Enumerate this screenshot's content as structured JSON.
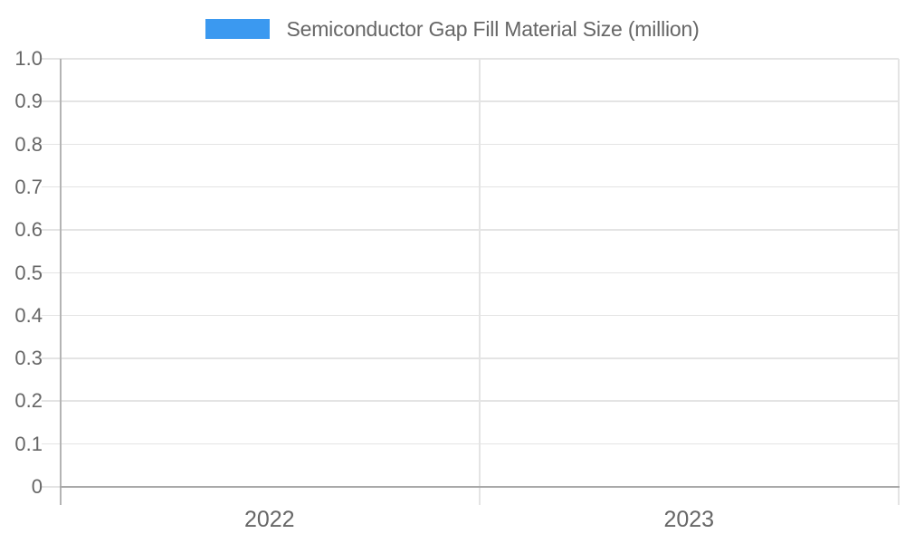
{
  "legend": {
    "label": "Semiconductor Gap Fill Material Size (million)"
  },
  "chart_data": {
    "type": "bar",
    "title": "Semiconductor Gap Fill Material Size (million)",
    "categories": [
      "2022",
      "2023"
    ],
    "series": [
      {
        "name": "Semiconductor Gap Fill Material Size (million)",
        "color": "#3B99F0",
        "values": [
          null,
          null
        ]
      }
    ],
    "xlabel": "",
    "ylabel": "",
    "ylim": [
      0,
      1
    ],
    "ytick_labels": [
      "0",
      "0.1",
      "0.2",
      "0.3",
      "0.4",
      "0.5",
      "0.6",
      "0.7",
      "0.8",
      "0.9",
      "1.0"
    ],
    "grid": true,
    "legend_position": "top-center"
  },
  "colors": {
    "series_blue": "#3B99F0",
    "title_text": "#666666",
    "axis_label": "#666666",
    "x_axis_line": "#a9a9a9",
    "y_axis_line": "#b4b4b4",
    "gridline": "#e4e4e4",
    "background": "#ffffff"
  }
}
